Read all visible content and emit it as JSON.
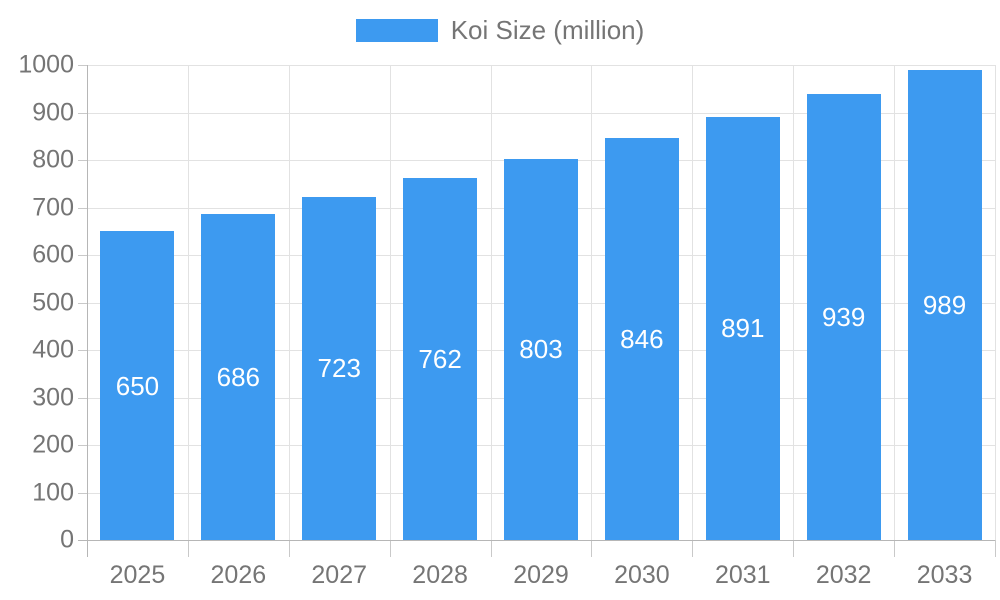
{
  "chart_data": {
    "type": "bar",
    "title": "",
    "legend": "Koi Size (million)",
    "legend_position": "top-center",
    "categories": [
      "2025",
      "2026",
      "2027",
      "2028",
      "2029",
      "2030",
      "2031",
      "2032",
      "2033"
    ],
    "series": [
      {
        "name": "Koi Size (million)",
        "values": [
          650,
          686,
          723,
          762,
          803,
          846,
          891,
          939,
          989
        ]
      }
    ],
    "xlabel": "",
    "ylabel": "",
    "ylim": [
      0,
      1000
    ],
    "ytick_step": 100,
    "yticks": [
      "0",
      "100",
      "200",
      "300",
      "400",
      "500",
      "600",
      "700",
      "800",
      "900",
      "1000"
    ],
    "grid": true,
    "bar_labels_visible": true,
    "colors": {
      "bar": "#3d9af0",
      "bar_label_text": "#ffffff",
      "axis_text": "#757575",
      "legend_text": "#757575",
      "gridline": "#e2e2e2",
      "axis_line": "#b6b6b6",
      "tick": "#c9c9c9",
      "background": "#ffffff"
    }
  }
}
